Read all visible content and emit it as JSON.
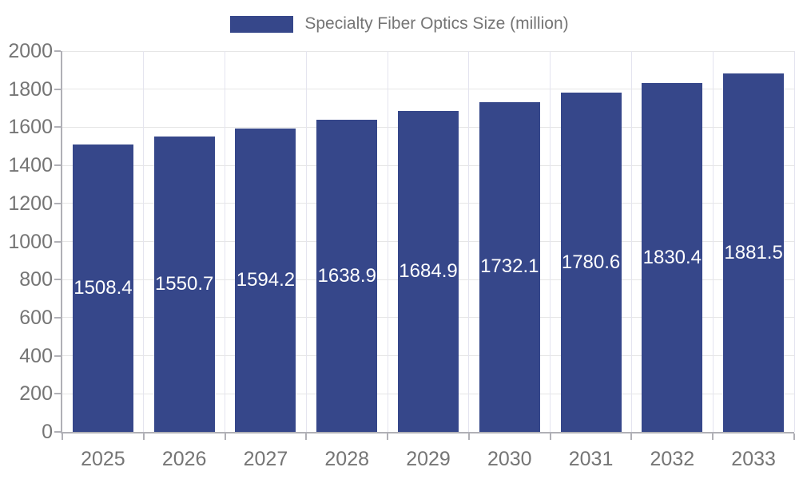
{
  "legend": {
    "label": "Specialty Fiber Optics Size (million)"
  },
  "chart_data": {
    "type": "bar",
    "title": "Specialty Fiber Optics Size (million)",
    "series_name": "Specialty Fiber Optics Size (million)",
    "categories": [
      "2025",
      "2026",
      "2027",
      "2028",
      "2029",
      "2030",
      "2031",
      "2032",
      "2033"
    ],
    "values": [
      1508.4,
      1550.7,
      1594.2,
      1638.9,
      1684.9,
      1732.1,
      1780.6,
      1830.4,
      1881.5
    ],
    "value_labels": [
      "1508.4",
      "1550.7",
      "1594.2",
      "1638.9",
      "1684.9",
      "1732.1",
      "1780.6",
      "1830.4",
      "1881.5"
    ],
    "xlabel": "",
    "ylabel": "",
    "ylim": [
      0,
      2000
    ],
    "y_ticks": [
      0,
      200,
      400,
      600,
      800,
      1000,
      1200,
      1400,
      1600,
      1800,
      2000
    ],
    "grid": "horizontal-and-vertical",
    "legend_position": "top-center"
  },
  "colors": {
    "bar": "#36478a",
    "value_label_text": "#ffffff",
    "axis_line": "#b0b0b6",
    "gridline_horizontal": "#e6e6e6",
    "gridline_vertical": "#e4e4ef",
    "tick_label_text": "#757575",
    "legend_text": "#757575",
    "background": "#ffffff"
  }
}
